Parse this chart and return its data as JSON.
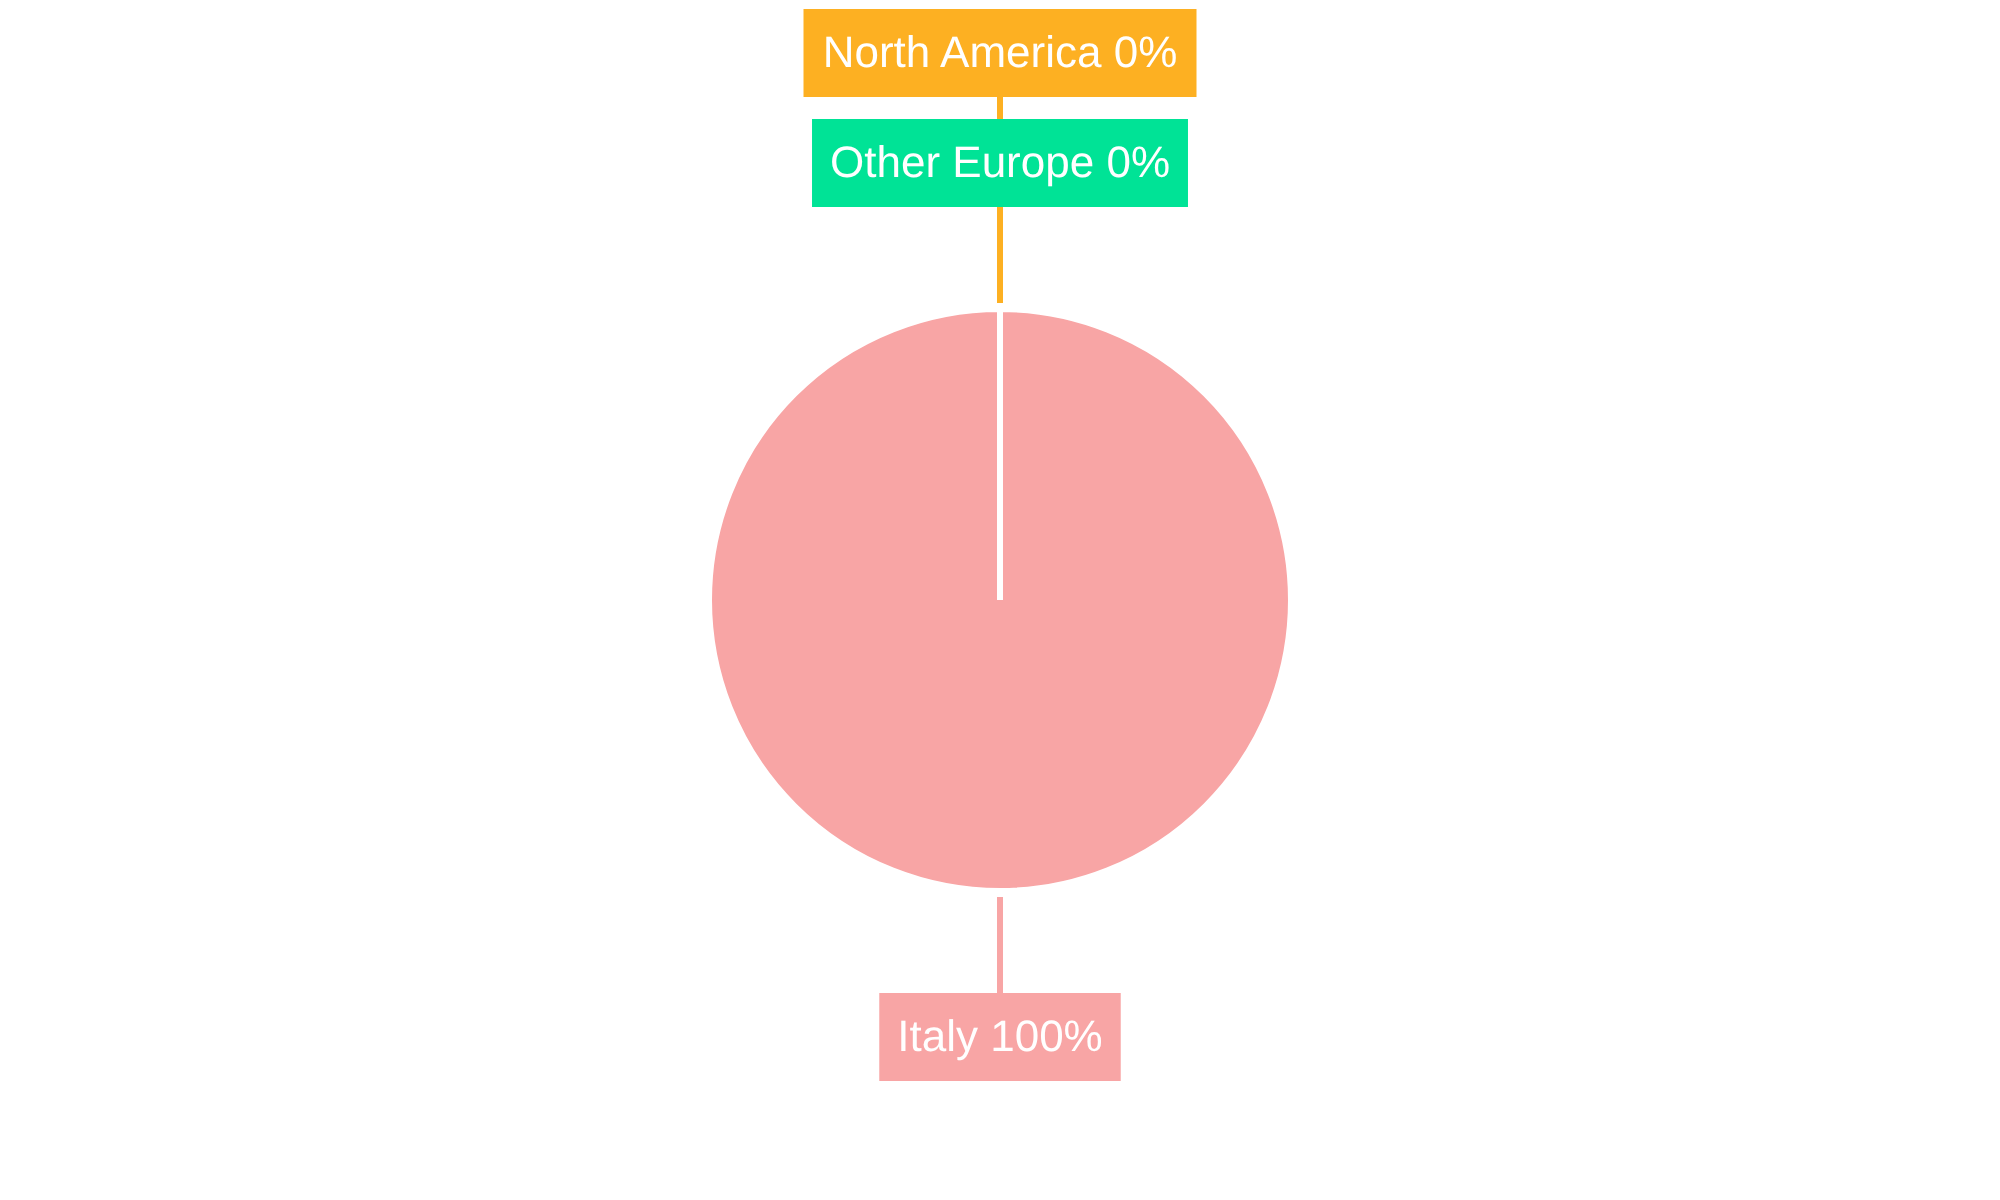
{
  "chart_data": {
    "type": "pie",
    "categories": [
      "Italy",
      "North America",
      "Other Europe"
    ],
    "values": [
      100,
      0,
      0
    ],
    "value_labels": [
      "100%",
      "0%",
      "0%"
    ],
    "colors": [
      "#f8a5a5",
      "#fdb022",
      "#00e396"
    ]
  }
}
